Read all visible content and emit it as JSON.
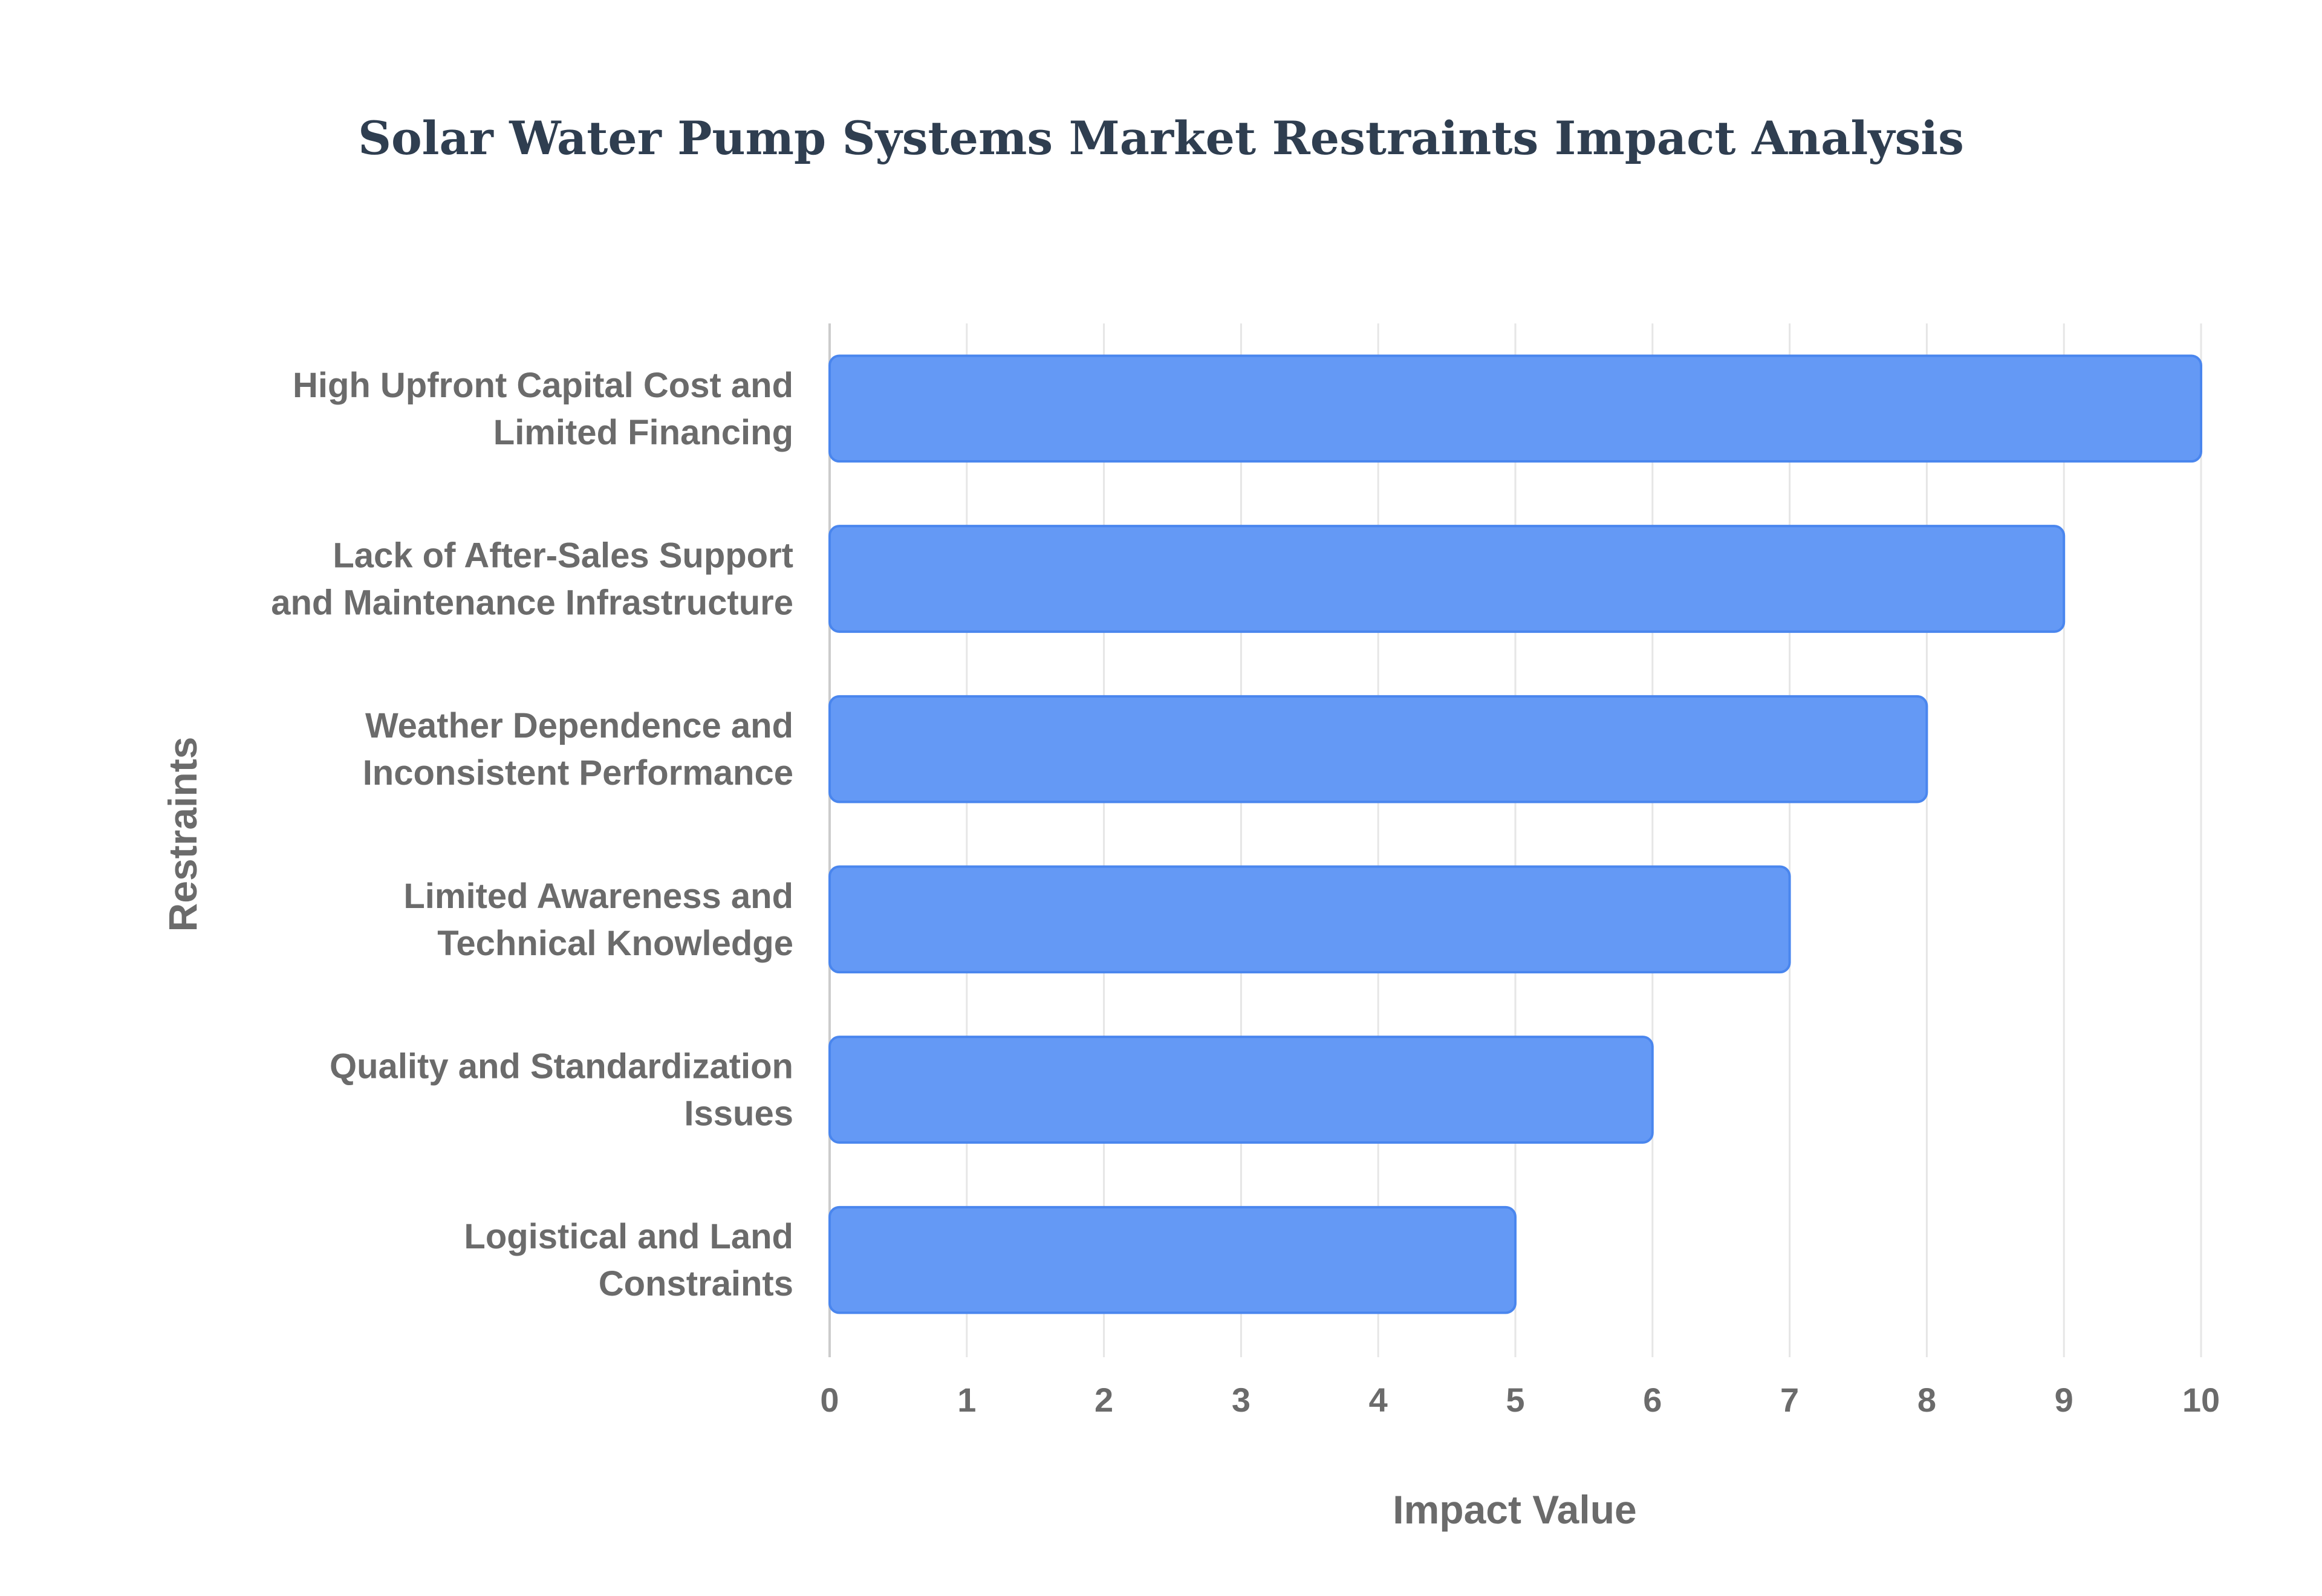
{
  "colors": {
    "bar_fill": "#6499f5",
    "bar_stroke": "#4a86ee",
    "title": "#2f3e50",
    "label": "#6b6b6b",
    "grid": "#e6e6e6",
    "axis": "#cccccc"
  },
  "chart_data": {
    "type": "bar",
    "orientation": "horizontal",
    "title": "Solar Water Pump Systems Market Restraints Impact Analysis",
    "xlabel": "Impact Value",
    "ylabel": "Restraints",
    "xlim": [
      0,
      10
    ],
    "xticks": [
      "0",
      "1",
      "2",
      "3",
      "4",
      "5",
      "6",
      "7",
      "8",
      "9",
      "10"
    ],
    "grid": true,
    "categories": [
      [
        "High Upfront Capital Cost and",
        "Limited Financing"
      ],
      [
        "Lack of After-Sales Support",
        "and Maintenance Infrastructure"
      ],
      [
        "Weather Dependence and",
        "Inconsistent Performance"
      ],
      [
        "Limited Awareness and",
        "Technical Knowledge"
      ],
      [
        "Quality and Standardization",
        "Issues"
      ],
      [
        "Logistical and Land",
        "Constraints"
      ]
    ],
    "values": [
      10,
      9,
      8,
      7,
      6,
      5
    ]
  }
}
